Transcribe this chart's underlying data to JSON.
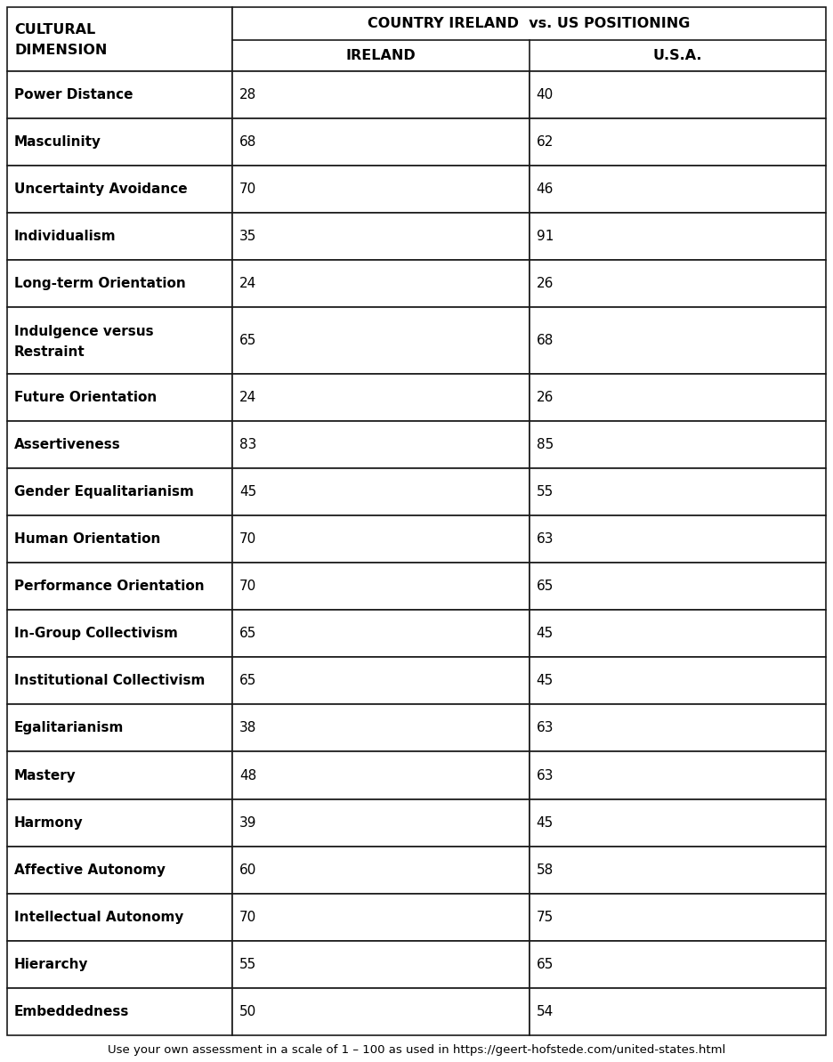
{
  "title_line1": "COUNTRY IRELAND  vs. US POSITIONING",
  "title_line2_left": "IRELAND",
  "title_line2_right": "U.S.A.",
  "col0_header_line1": "CULTURAL",
  "col0_header_line2": "DIMENSION",
  "rows": [
    [
      "Power Distance",
      "28",
      "40"
    ],
    [
      "Masculinity",
      "68",
      "62"
    ],
    [
      "Uncertainty Avoidance",
      "70",
      "46"
    ],
    [
      "Individualism",
      "35",
      "91"
    ],
    [
      "Long-term Orientation",
      "24",
      "26"
    ],
    [
      "Indulgence versus\nRestraint",
      "65",
      "68"
    ],
    [
      "Future Orientation",
      "24",
      "26"
    ],
    [
      "Assertiveness",
      "83",
      "85"
    ],
    [
      "Gender Equalitarianism",
      "45",
      "55"
    ],
    [
      "Human Orientation",
      "70",
      "63"
    ],
    [
      "Performance Orientation",
      "70",
      "65"
    ],
    [
      "In-Group Collectivism",
      "65",
      "45"
    ],
    [
      "Institutional Collectivism",
      "65",
      "45"
    ],
    [
      "Egalitarianism",
      "38",
      "63"
    ],
    [
      "Mastery",
      "48",
      "63"
    ],
    [
      "Harmony",
      "39",
      "45"
    ],
    [
      "Affective Autonomy",
      "60",
      "58"
    ],
    [
      "Intellectual Autonomy",
      "70",
      "75"
    ],
    [
      "Hierarchy",
      "55",
      "65"
    ],
    [
      "Embeddedness",
      "50",
      "54"
    ]
  ],
  "footer": "Use your own assessment in a scale of 1 – 100 as used in https://geert-hofstede.com/united-states.html",
  "border_color": "#1a1a1a",
  "text_color": "#000000",
  "header_font_size": 11.5,
  "cell_font_size": 11,
  "footer_font_size": 9.5,
  "fig_width": 9.36,
  "fig_height": 11.93,
  "dpi": 100
}
